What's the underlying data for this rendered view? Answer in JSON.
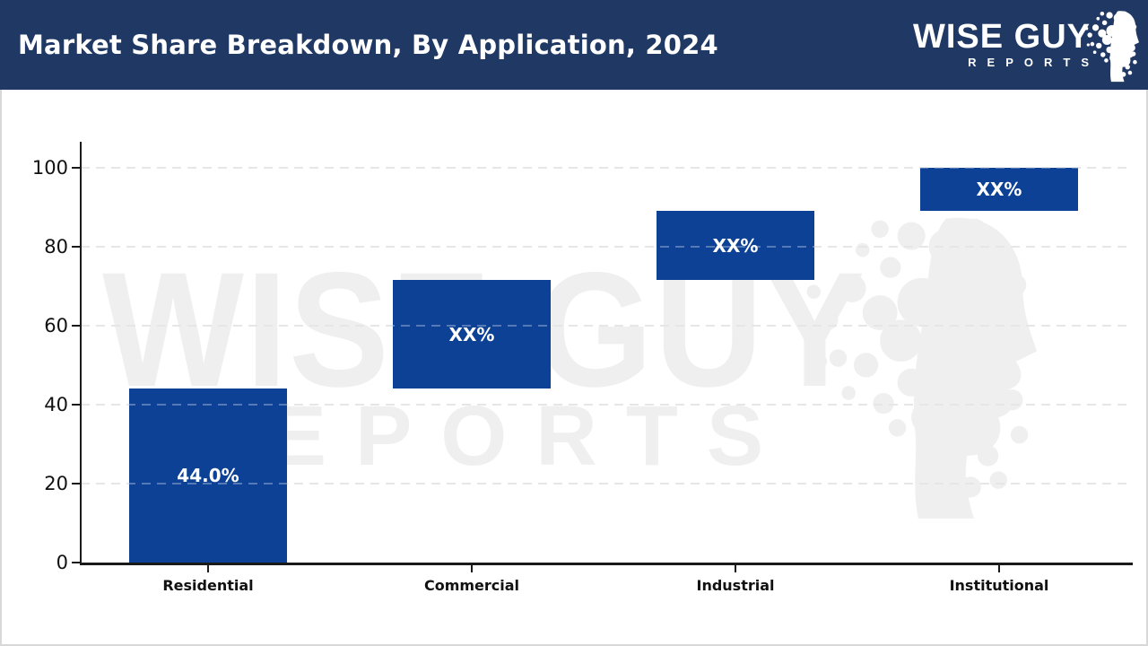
{
  "header": {
    "title": "Market Share Breakdown, By Application, 2024",
    "background_color": "#1F3864",
    "logo": {
      "wordmark": "WISE GUY",
      "subtext": "REPORTS"
    }
  },
  "watermark": {
    "line1": "WISE GUY",
    "line2": "REPORTS"
  },
  "chart_data": {
    "type": "bar",
    "subtype": "waterfall",
    "title": "Market Share Breakdown, By Application, 2024",
    "categories": [
      "Residential",
      "Commercial",
      "Industrial",
      "Institutional"
    ],
    "segments": [
      {
        "category": "Residential",
        "start": 0,
        "end": 44.0,
        "label": "44.0%"
      },
      {
        "category": "Commercial",
        "start": 44.0,
        "end": 71.5,
        "label": "XX%"
      },
      {
        "category": "Industrial",
        "start": 71.5,
        "end": 89.0,
        "label": "XX%"
      },
      {
        "category": "Institutional",
        "start": 89.0,
        "end": 100.0,
        "label": "XX%"
      }
    ],
    "yticks": [
      0,
      20,
      40,
      60,
      80,
      100
    ],
    "ylim": [
      0,
      106
    ],
    "xlabel": "",
    "ylabel": "",
    "grid": "horizontal-dashed",
    "legend": "none",
    "bar_color": "#0D4195",
    "bar_label_color": "#FFFFFF"
  }
}
